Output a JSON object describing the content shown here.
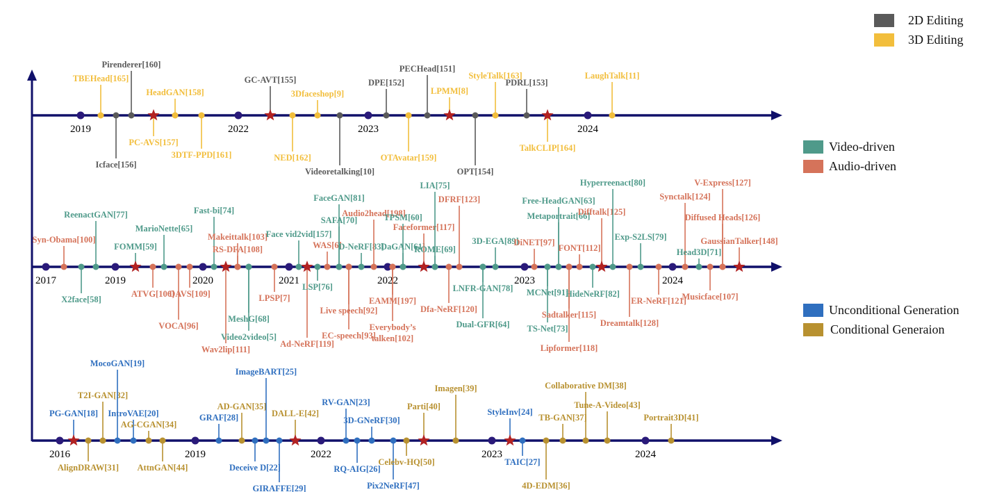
{
  "colors": {
    "axis": "#10106a",
    "year_dot": "#2a1a7a",
    "star": "#b22222",
    "2d": "#5a5a5a",
    "3d": "#f2be3c",
    "video": "#4f9a8a",
    "audio": "#d5735a",
    "uncond": "#2f6fbf",
    "cond": "#b89130"
  },
  "legends": [
    {
      "items": [
        {
          "key": "2d",
          "label": "2D Editing"
        },
        {
          "key": "3d",
          "label": "3D Editing"
        }
      ]
    },
    {
      "items": [
        {
          "key": "video",
          "label": "Video-driven"
        },
        {
          "key": "audio",
          "label": "Audio-driven"
        }
      ]
    },
    {
      "items": [
        {
          "key": "uncond",
          "label": "Unconditional Generation"
        },
        {
          "key": "cond",
          "label": "Conditional Generaion"
        }
      ]
    }
  ],
  "chart_data": {
    "type": "timeline",
    "title": "",
    "timelines": [
      {
        "name": "Editing",
        "years": [
          "2019",
          "2022",
          "2023",
          "2024"
        ],
        "milestones": [
          {
            "label": "TBEHead[165]",
            "cat": "3d",
            "dir": "up",
            "order": 1
          },
          {
            "label": "Icface[156]",
            "cat": "2d",
            "dir": "down",
            "order": 2
          },
          {
            "label": "Pirenderer[160]",
            "cat": "2d",
            "dir": "up",
            "order": 3
          },
          {
            "label": "PC-AVS[157]",
            "cat": "3d",
            "dir": "down",
            "order": 4,
            "star": true
          },
          {
            "label": "HeadGAN[158]",
            "cat": "3d",
            "dir": "up",
            "order": 5
          },
          {
            "label": "3DTF-PPD[161]",
            "cat": "3d",
            "dir": "down",
            "order": 6
          },
          {
            "label": "GC-AVT[155]",
            "cat": "2d",
            "dir": "up",
            "order": 7,
            "star": true
          },
          {
            "label": "NED[162]",
            "cat": "3d",
            "dir": "down",
            "order": 8
          },
          {
            "label": "3Dfaceshop[9]",
            "cat": "3d",
            "dir": "up",
            "order": 9
          },
          {
            "label": "Videoretalking[10]",
            "cat": "2d",
            "dir": "down",
            "order": 10
          },
          {
            "label": "DPE[152]",
            "cat": "2d",
            "dir": "up",
            "order": 11
          },
          {
            "label": "OTAvatar[159]",
            "cat": "3d",
            "dir": "down",
            "order": 12
          },
          {
            "label": "PECHead[151]",
            "cat": "2d",
            "dir": "up",
            "order": 13
          },
          {
            "label": "LPMM[8]",
            "cat": "3d",
            "dir": "up",
            "order": 14,
            "star": true
          },
          {
            "label": "OPT[154]",
            "cat": "2d",
            "dir": "down",
            "order": 15
          },
          {
            "label": "StyleTalk[163]",
            "cat": "3d",
            "dir": "up",
            "order": 16
          },
          {
            "label": "PDRL[153]",
            "cat": "2d",
            "dir": "up",
            "order": 17
          },
          {
            "label": "TalkCLIP[164]",
            "cat": "3d",
            "dir": "down",
            "order": 18,
            "star": true
          },
          {
            "label": "LaughTalk[11]",
            "cat": "3d",
            "dir": "up",
            "order": 19
          }
        ]
      },
      {
        "name": "Driven",
        "years": [
          "2017",
          "2019",
          "2020",
          "2021",
          "2022",
          "2023",
          "2024"
        ],
        "milestones": [
          {
            "label": "Syn-Obama[100]",
            "cat": "audio",
            "dir": "up"
          },
          {
            "label": "X2face[58]",
            "cat": "video",
            "dir": "down"
          },
          {
            "label": "ReenactGAN[77]",
            "cat": "video",
            "dir": "up"
          },
          {
            "label": "FOMM[59]",
            "cat": "video",
            "dir": "up",
            "star": true
          },
          {
            "label": "ATVG[106]",
            "cat": "audio",
            "dir": "down"
          },
          {
            "label": "MarioNette[65]",
            "cat": "video",
            "dir": "up"
          },
          {
            "label": "VOCA[96]",
            "cat": "audio",
            "dir": "down"
          },
          {
            "label": "DAVS[109]",
            "cat": "audio",
            "dir": "down"
          },
          {
            "label": "Fast-bi[74]",
            "cat": "video",
            "dir": "up"
          },
          {
            "label": "Wav2lip[111]",
            "cat": "audio",
            "dir": "down",
            "star": true
          },
          {
            "label": "Makeittalk[103]",
            "cat": "audio",
            "dir": "up"
          },
          {
            "label": "RS-DFA[108]",
            "cat": "audio",
            "dir": "up"
          },
          {
            "label": "MeshG[68]",
            "cat": "video",
            "dir": "down"
          },
          {
            "label": "Video2video[5]",
            "cat": "video",
            "dir": "down"
          },
          {
            "label": "LPSP[7]",
            "cat": "audio",
            "dir": "down"
          },
          {
            "label": "Face vid2vid[157]",
            "cat": "video",
            "dir": "up"
          },
          {
            "label": "Ad-NeRF[119]",
            "cat": "audio",
            "dir": "down",
            "star": true
          },
          {
            "label": "LSP[76]",
            "cat": "video",
            "dir": "down"
          },
          {
            "label": "WAS[6]",
            "cat": "audio",
            "dir": "up"
          },
          {
            "label": "FaceGAN[81]",
            "cat": "video",
            "dir": "up"
          },
          {
            "label": "SAFA[70]",
            "cat": "video",
            "dir": "up"
          },
          {
            "label": "Live speech[92]",
            "cat": "audio",
            "dir": "down"
          },
          {
            "label": "EC-speech[93]",
            "cat": "audio",
            "dir": "down"
          },
          {
            "label": "D-NeRF[83]",
            "cat": "video",
            "dir": "up"
          },
          {
            "label": "Audio2head[198]",
            "cat": "audio",
            "dir": "up"
          },
          {
            "label": "TPSM[60]",
            "cat": "video",
            "dir": "up"
          },
          {
            "label": "DaGAN[61]",
            "cat": "video",
            "dir": "up"
          },
          {
            "label": "EAMM[197]",
            "cat": "audio",
            "dir": "down"
          },
          {
            "label": "Everybody’s talken[102]",
            "cat": "audio",
            "dir": "down"
          },
          {
            "label": "Faceformer[117]",
            "cat": "audio",
            "dir": "up",
            "star": true
          },
          {
            "label": "LIA[75]",
            "cat": "video",
            "dir": "up"
          },
          {
            "label": "ROME[69]",
            "cat": "video",
            "dir": "up"
          },
          {
            "label": "Dfa-NeRF[120]",
            "cat": "audio",
            "dir": "down"
          },
          {
            "label": "DFRF[123]",
            "cat": "audio",
            "dir": "up"
          },
          {
            "label": "LNFR-GAN[78]",
            "cat": "video",
            "dir": "down"
          },
          {
            "label": "Dual-GFR[64]",
            "cat": "video",
            "dir": "down"
          },
          {
            "label": "3D-EGA[89]",
            "cat": "video",
            "dir": "up"
          },
          {
            "label": "DiNET[97]",
            "cat": "audio",
            "dir": "up"
          },
          {
            "label": "MCNet[91]",
            "cat": "video",
            "dir": "down"
          },
          {
            "label": "TS-Net[73]",
            "cat": "video",
            "dir": "down"
          },
          {
            "label": "Metaportrait[66]",
            "cat": "video",
            "dir": "up"
          },
          {
            "label": "Free-HeadGAN[63]",
            "cat": "video",
            "dir": "up"
          },
          {
            "label": "Sadtalker[115]",
            "cat": "audio",
            "dir": "down"
          },
          {
            "label": "Lipformer[118]",
            "cat": "audio",
            "dir": "down"
          },
          {
            "label": "FONT[112]",
            "cat": "audio",
            "dir": "up"
          },
          {
            "label": "HideNeRF[82]",
            "cat": "video",
            "dir": "down"
          },
          {
            "label": "Difftalk[125]",
            "cat": "audio",
            "dir": "up",
            "star": true
          },
          {
            "label": "Hyperreenact[80]",
            "cat": "video",
            "dir": "up"
          },
          {
            "label": "Dreamtalk[128]",
            "cat": "audio",
            "dir": "down"
          },
          {
            "label": "Exp-S2LS[79]",
            "cat": "video",
            "dir": "up"
          },
          {
            "label": "ER-NeRF[121]",
            "cat": "audio",
            "dir": "down"
          },
          {
            "label": "Synctalk[124]",
            "cat": "audio",
            "dir": "up"
          },
          {
            "label": "Head3D[71]",
            "cat": "video",
            "dir": "up"
          },
          {
            "label": "Musicface[107]",
            "cat": "audio",
            "dir": "down"
          },
          {
            "label": "Diffused Heads[126]",
            "cat": "audio",
            "dir": "up"
          },
          {
            "label": "V-Express[127]",
            "cat": "audio",
            "dir": "up"
          },
          {
            "label": "GaussianTalker[148]",
            "cat": "audio",
            "dir": "up",
            "star": true
          }
        ]
      },
      {
        "name": "Generation",
        "years": [
          "2016",
          "2019",
          "2022",
          "2023",
          "2024"
        ],
        "milestones": [
          {
            "label": "PG-GAN[18]",
            "cat": "uncond",
            "dir": "up",
            "star": true
          },
          {
            "label": "AlignDRAW[31]",
            "cat": "cond",
            "dir": "down"
          },
          {
            "label": "T2I-GAN[32]",
            "cat": "cond",
            "dir": "up"
          },
          {
            "label": "MocoGAN[19]",
            "cat": "uncond",
            "dir": "up"
          },
          {
            "label": "IntroVAE[20]",
            "cat": "uncond",
            "dir": "up"
          },
          {
            "label": "AG-CGAN[34]",
            "cat": "cond",
            "dir": "up"
          },
          {
            "label": "AttnGAN[44]",
            "cat": "cond",
            "dir": "down"
          },
          {
            "label": "GRAF[28]",
            "cat": "uncond",
            "dir": "up"
          },
          {
            "label": "AD-GAN[35]",
            "cat": "cond",
            "dir": "up"
          },
          {
            "label": "Deceive D[22]",
            "cat": "uncond",
            "dir": "down"
          },
          {
            "label": "ImageBART[25]",
            "cat": "uncond",
            "dir": "up"
          },
          {
            "label": "GIRAFFE[29]",
            "cat": "uncond",
            "dir": "down"
          },
          {
            "label": "DALL-E[42]",
            "cat": "cond",
            "dir": "up",
            "star": true
          },
          {
            "label": "RV-GAN[23]",
            "cat": "uncond",
            "dir": "up"
          },
          {
            "label": "RQ-AIG[26]",
            "cat": "uncond",
            "dir": "down"
          },
          {
            "label": "3D-GNeRF[30]",
            "cat": "uncond",
            "dir": "up"
          },
          {
            "label": "Pix2NeRF[47]",
            "cat": "uncond",
            "dir": "down"
          },
          {
            "label": "Celebv-HQ[50]",
            "cat": "cond",
            "dir": "down"
          },
          {
            "label": "Parti[40]",
            "cat": "cond",
            "dir": "up",
            "star": true
          },
          {
            "label": "Imagen[39]",
            "cat": "cond",
            "dir": "up"
          },
          {
            "label": "StyleInv[24]",
            "cat": "uncond",
            "dir": "up",
            "star": true
          },
          {
            "label": "TAIC[27]",
            "cat": "uncond",
            "dir": "down"
          },
          {
            "label": "4D-EDM[36]",
            "cat": "cond",
            "dir": "down"
          },
          {
            "label": "TB-GAN[37]",
            "cat": "cond",
            "dir": "up"
          },
          {
            "label": "Collaborative DM[38]",
            "cat": "cond",
            "dir": "up"
          },
          {
            "label": "Tune-A-Video[43]",
            "cat": "cond",
            "dir": "up"
          },
          {
            "label": "Portrait3D[41]",
            "cat": "cond",
            "dir": "up"
          }
        ]
      }
    ]
  }
}
